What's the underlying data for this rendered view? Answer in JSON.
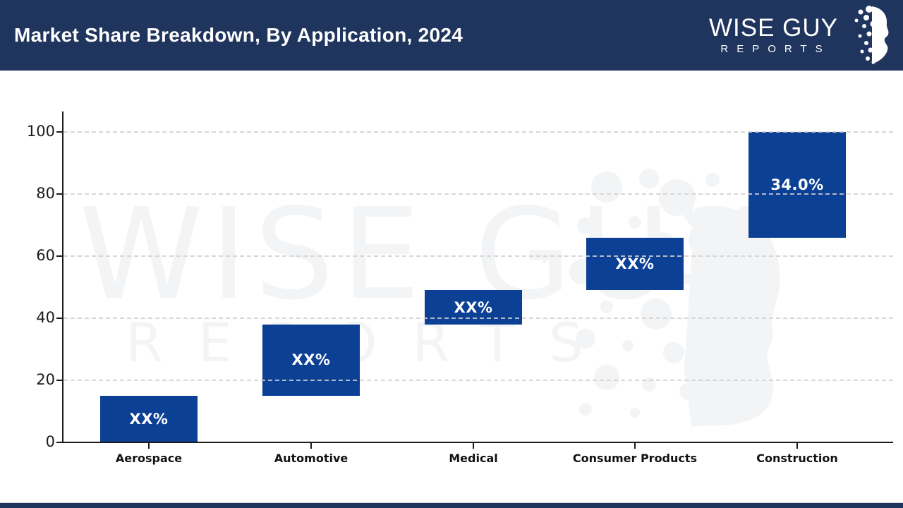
{
  "header": {
    "title": "Market Share Breakdown, By Application, 2024",
    "bg_color": "#20355E",
    "logo": {
      "line1": "WISE GUY",
      "line2": "REPORTS"
    }
  },
  "watermark": {
    "line1": "WISE GUY",
    "line2": "REPORTS"
  },
  "footer": {
    "bg_color": "#20355E"
  },
  "chart_data": {
    "type": "bar",
    "variant": "waterfall",
    "title": "Market Share Breakdown, By Application, 2024",
    "categories": [
      "Aerospace",
      "Automotive",
      "Medical",
      "Consumer Products",
      "Construction"
    ],
    "segments": [
      {
        "category": "Aerospace",
        "start": 0,
        "end": 15,
        "value": 15,
        "label": "XX%"
      },
      {
        "category": "Automotive",
        "start": 15,
        "end": 38,
        "value": 23,
        "label": "XX%"
      },
      {
        "category": "Medical",
        "start": 38,
        "end": 49,
        "value": 11,
        "label": "XX%"
      },
      {
        "category": "Consumer Products",
        "start": 49,
        "end": 66,
        "value": 17,
        "label": "XX%"
      },
      {
        "category": "Construction",
        "start": 66,
        "end": 100,
        "value": 34,
        "label": "34.0%"
      }
    ],
    "xlabel": "",
    "ylabel": "",
    "yticks": [
      0,
      20,
      40,
      60,
      80,
      100
    ],
    "ylim": [
      0,
      106
    ],
    "grid": "horizontal-dashed",
    "legend": "none",
    "bar_color": "#0B4095",
    "bar_label_color": "#FFFFFF",
    "grid_color": "#D0D0D0",
    "axis_color": "#1A1A1A"
  }
}
